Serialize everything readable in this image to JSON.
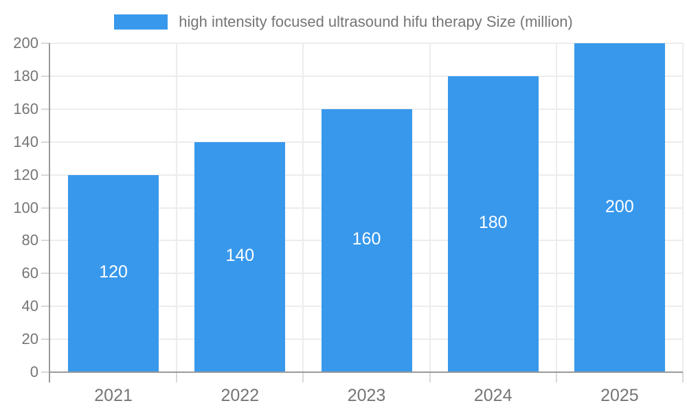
{
  "legend": {
    "label": "high intensity focused ultrasound hifu therapy Size (million)"
  },
  "colors": {
    "bar": "#3898ec",
    "grid": "#ececec",
    "tick": "#d9d9d9",
    "axis": "#999999",
    "text": "#757575",
    "value_label": "#ffffff"
  },
  "chart_data": {
    "type": "bar",
    "title": "",
    "xlabel": "",
    "ylabel": "",
    "categories": [
      "2021",
      "2022",
      "2023",
      "2024",
      "2025"
    ],
    "values": [
      120,
      140,
      160,
      180,
      200
    ],
    "series_name": "high intensity focused ultrasound hifu therapy Size (million)",
    "value_labels": [
      "120",
      "140",
      "160",
      "180",
      "200"
    ],
    "ylim": [
      0,
      200
    ],
    "yticks": [
      0,
      20,
      40,
      60,
      80,
      100,
      120,
      140,
      160,
      180,
      200
    ],
    "grid": true,
    "legend_position": "top"
  }
}
